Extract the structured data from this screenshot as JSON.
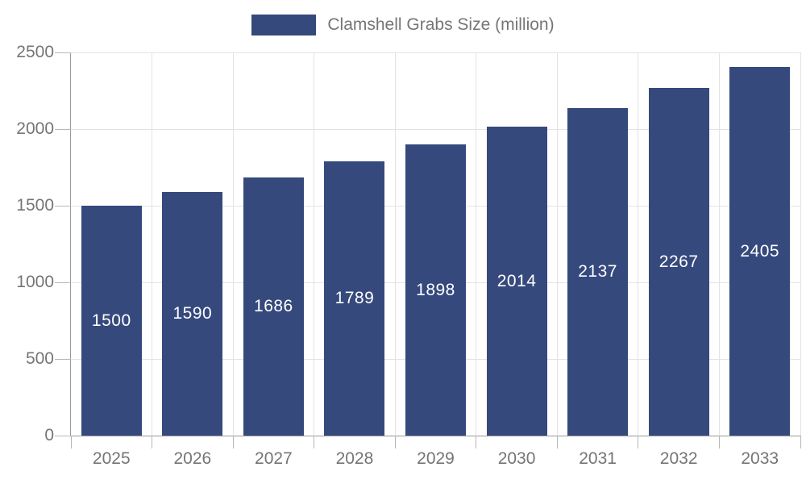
{
  "legend": {
    "label": "Clamshell Grabs Size (million)",
    "swatch_color": "#36497D"
  },
  "colors": {
    "bar": "#36497D",
    "value_label": "#ffffff",
    "axis_text": "#757575",
    "grid_line": "#e3e3e3",
    "axis_line": "#9a9a9a",
    "tick": "#b7b7b7",
    "background": "#ffffff"
  },
  "chart_data": {
    "type": "bar",
    "title": "Clamshell Grabs Size (million)",
    "series_name": "Clamshell Grabs Size (million)",
    "categories": [
      "2025",
      "2026",
      "2027",
      "2028",
      "2029",
      "2030",
      "2031",
      "2032",
      "2033"
    ],
    "values": [
      1500,
      1590,
      1686,
      1789,
      1898,
      2014,
      2137,
      2267,
      2405
    ],
    "xlabel": "",
    "ylabel": "",
    "ylim": [
      0,
      2500
    ],
    "yticks": [
      0,
      500,
      1000,
      1500,
      2000,
      2500
    ],
    "grid": true,
    "legend_position": "top-center",
    "value_labels_position": "inside-middle"
  }
}
